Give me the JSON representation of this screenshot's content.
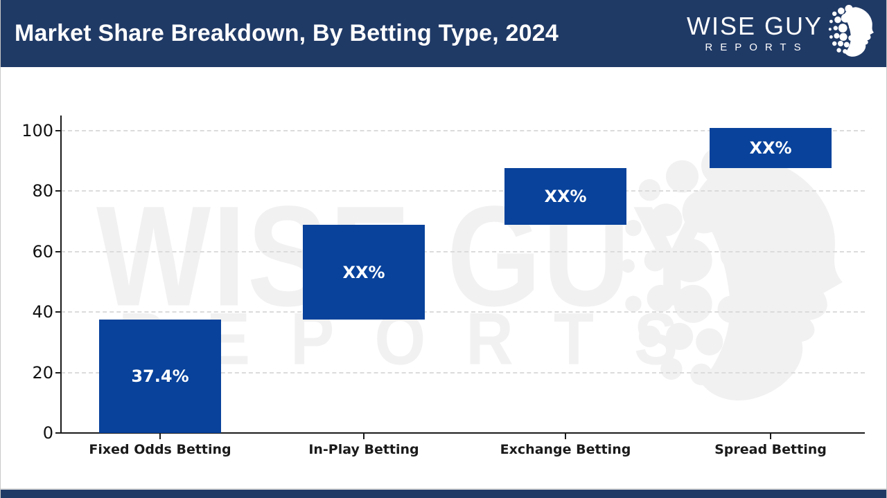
{
  "header": {
    "title": "Market Share Breakdown, By Betting Type, 2024",
    "brand_line1": "WISE GUY",
    "brand_line2": "REPORTS"
  },
  "watermark": {
    "line1": "WISE GUY",
    "line2": "REPORTS"
  },
  "chart_data": {
    "type": "bar",
    "subtype": "waterfall",
    "title": "Market Share Breakdown, By Betting Type, 2024",
    "categories": [
      "Fixed Odds Betting",
      "In-Play Betting",
      "Exchange Betting",
      "Spread Betting"
    ],
    "bars": [
      {
        "category": "Fixed Odds Betting",
        "start": 0,
        "end": 37.4,
        "label": "37.4%"
      },
      {
        "category": "In-Play Betting",
        "start": 37.4,
        "end": 68.8,
        "label": "XX%"
      },
      {
        "category": "Exchange Betting",
        "start": 68.8,
        "end": 87.6,
        "label": "XX%"
      },
      {
        "category": "Spread Betting",
        "start": 87.6,
        "end": 100.8,
        "label": "XX%"
      }
    ],
    "y_ticks": [
      0,
      20,
      40,
      60,
      80,
      100
    ],
    "ylim": [
      0,
      105
    ],
    "grid": "horizontal-dashed",
    "legend": "none",
    "xlabel": "",
    "ylabel": ""
  },
  "colors": {
    "header_bg": "#203a66",
    "footer_bg": "#203a66",
    "bar": "#08429b",
    "bar_label": "#ffffff",
    "grid": "#dbdbdb",
    "axis": "#1a1a1a",
    "watermark": "#f1f1f1"
  }
}
